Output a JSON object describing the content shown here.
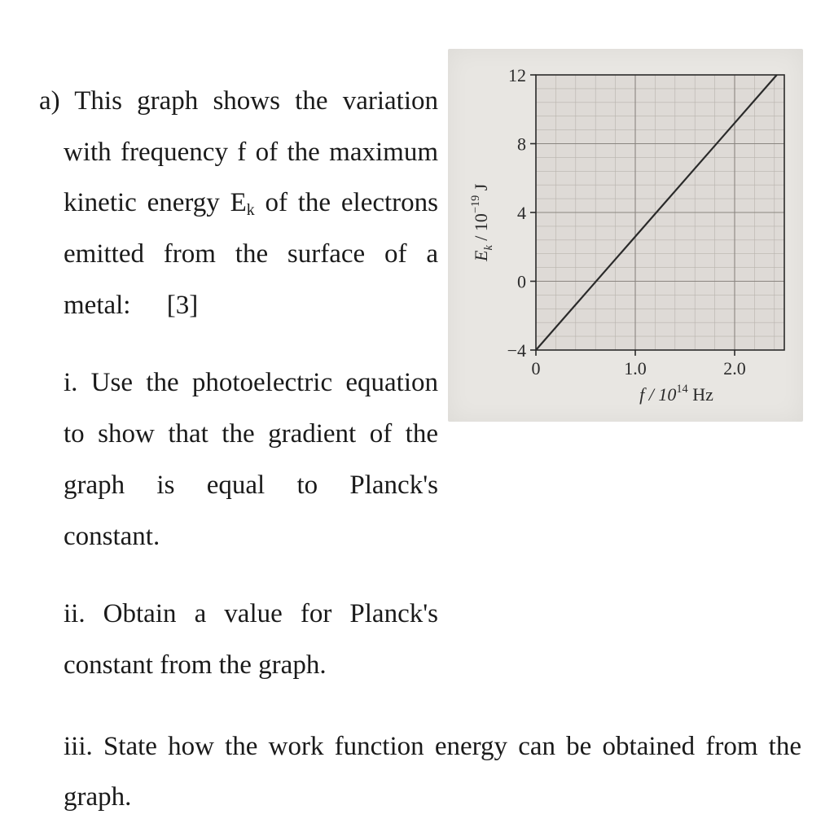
{
  "question": {
    "label": "a)",
    "intro_part1": "This graph shows the variation with frequency f of the maximum kinetic energy E",
    "intro_sub": "k",
    "intro_part2": " of the electrons emitted from the surface of a metal:",
    "marks": "[3]",
    "parts": {
      "i": "i. Use the photoelectric equation to show that the gradient of the graph is equal to Planck's constant.",
      "ii": "ii. Obtain a value for Planck's constant from the graph.",
      "iii": "iii. State how the work function energy can be obtained from the graph."
    }
  },
  "chart": {
    "type": "line",
    "background_color": "#e8e6e2",
    "plot_bg": "#dedad6",
    "grid_major_color": "#8a8580",
    "grid_minor_color": "#b8b3ad",
    "line_color": "#2a2a2a",
    "axis_color": "#2a2a2a",
    "text_color": "#2a2a2a",
    "label_fontsize": 22,
    "tick_fontsize": 22,
    "line_width": 2.2,
    "y": {
      "label_prefix": "E",
      "label_sub": "k",
      "label_mid": " / 10",
      "label_sup": "−19",
      "label_suffix": " J",
      "min": -4,
      "max": 12,
      "tick_step": 4,
      "ticks": [
        -4,
        0,
        4,
        8,
        12
      ],
      "minor_per_major": 5
    },
    "x": {
      "label_prefix": "f / 10",
      "label_sup": "14",
      "label_suffix": " Hz",
      "min": 0,
      "max": 2.5,
      "tick_step": 1.0,
      "ticks": [
        0,
        1.0,
        2.0
      ],
      "tick_labels": [
        "0",
        "1.0",
        "2.0"
      ],
      "minor_per_major": 5
    },
    "data_line": {
      "x": [
        0,
        2.5
      ],
      "y": [
        -4,
        12.5
      ]
    }
  }
}
